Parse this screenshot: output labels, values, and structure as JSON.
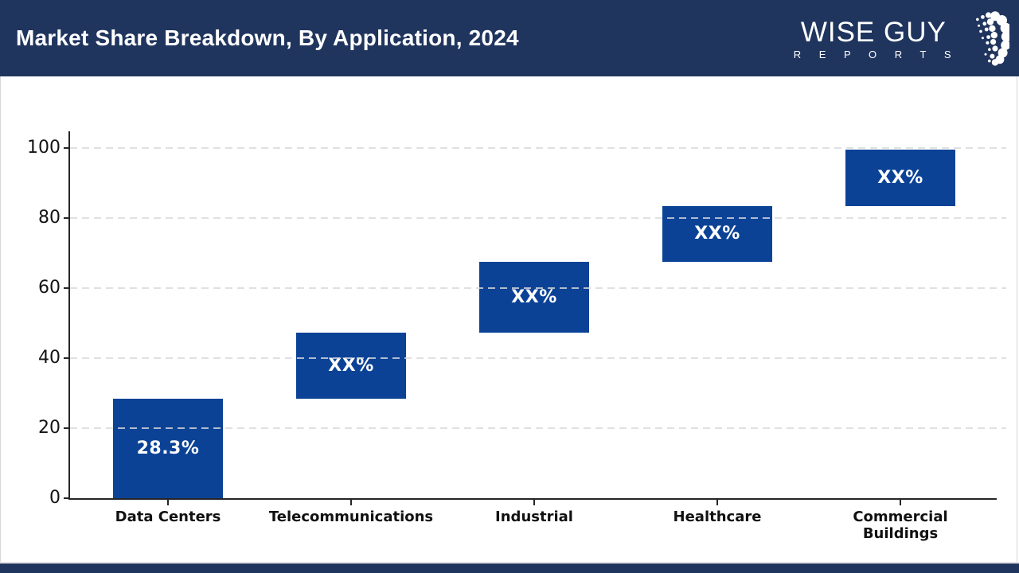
{
  "header": {
    "title": "Market Share Breakdown, By Application, 2024",
    "bg_color": "#20355e",
    "logo": {
      "wordmark": "WISE GUY",
      "subtext": "R E P O R T S"
    }
  },
  "watermark": {
    "line1": "WISE GUY",
    "line2": "R E P O R T S"
  },
  "chart_data": {
    "type": "bar",
    "subtype": "waterfall",
    "title": "Market Share Breakdown, By Application, 2024",
    "categories": [
      "Data Centers",
      "Telecommunications",
      "Industrial",
      "Healthcare",
      "Commercial Buildings"
    ],
    "segments": [
      {
        "category": "Data Centers",
        "label": "28.3%",
        "start": 0,
        "end": 28.3
      },
      {
        "category": "Telecommunications",
        "label": "XX%",
        "start": 28.3,
        "end": 47.2
      },
      {
        "category": "Industrial",
        "label": "XX%",
        "start": 47.3,
        "end": 67.4
      },
      {
        "category": "Healthcare",
        "label": "XX%",
        "start": 67.4,
        "end": 83.4
      },
      {
        "category": "Commercial Buildings",
        "label": "XX%",
        "start": 83.4,
        "end": 99.5
      }
    ],
    "yticks": [
      0,
      20,
      40,
      60,
      80,
      100
    ],
    "ylim": [
      0,
      105
    ],
    "xlabel": "",
    "ylabel": "",
    "grid": "horizontal-dashed",
    "legend": "none",
    "bar_color": "#0b4296",
    "grid_color": "#d9d9d9",
    "category_wrap": [
      false,
      false,
      false,
      false,
      true
    ]
  }
}
